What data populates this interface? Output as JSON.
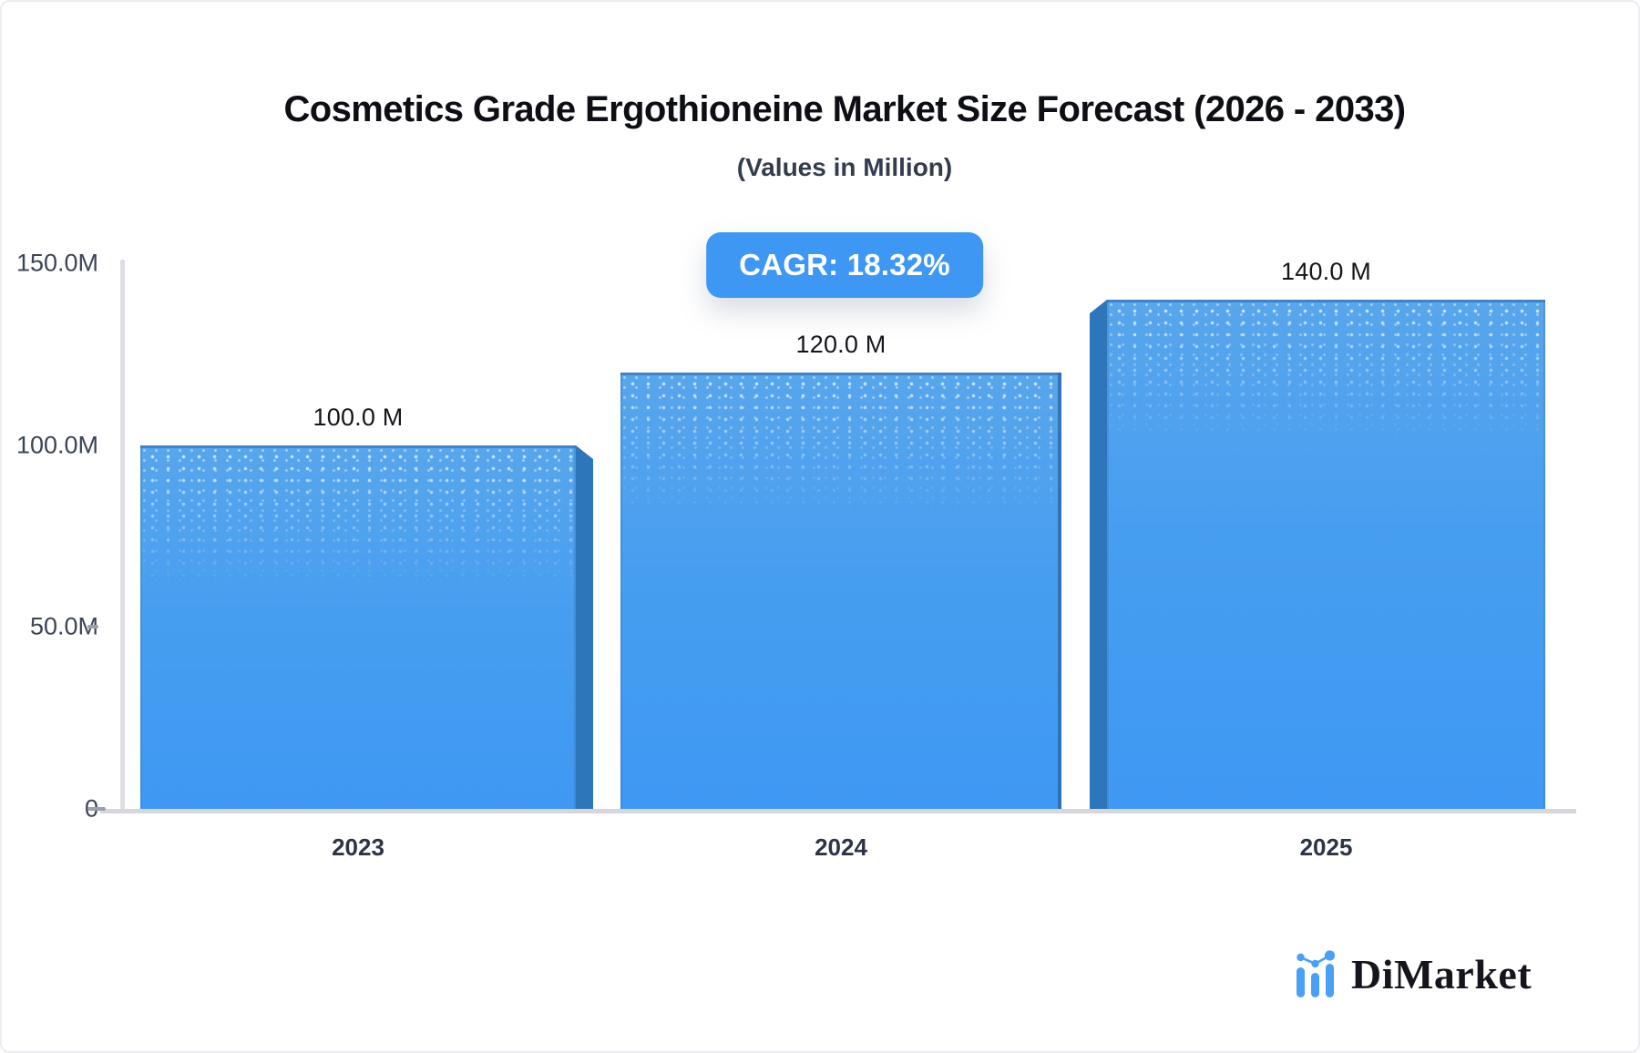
{
  "chart_data": {
    "type": "bar",
    "title": "Cosmetics Grade Ergothioneine Market Size Forecast (2026 - 2033)",
    "subtitle": "(Values in Million)",
    "annotation": "CAGR: 18.32%",
    "cagr_percent": 18.32,
    "categories": [
      "2023",
      "2024",
      "2025"
    ],
    "values": [
      100.0,
      120.0,
      140.0
    ],
    "value_labels": [
      "100.0 M",
      "120.0 M",
      "140.0 M"
    ],
    "y_ticks": [
      {
        "label": "150.0M",
        "value": 150,
        "dash": 0
      },
      {
        "label": "100.0M",
        "value": 100,
        "dash": 0
      },
      {
        "label": "50.0M",
        "value": 50,
        "dash": 12
      },
      {
        "label": "0",
        "value": 0,
        "dash": 20
      }
    ],
    "ylim": [
      0,
      150
    ],
    "grid": false,
    "legend": false,
    "colors": {
      "bar_fill_top": "#58a6ec",
      "bar_fill_bottom": "#3f98f3",
      "bar_side_3d": "#2e76ba",
      "badge_background": "#3e97f2",
      "badge_text": "#ffffff",
      "axis_line": "#d8d8e0",
      "tick_text": "#3d4456"
    }
  },
  "logo": {
    "text": "DiMarket",
    "icon": "bar-line-chart-icon",
    "icon_color": "#4aa0f5"
  }
}
